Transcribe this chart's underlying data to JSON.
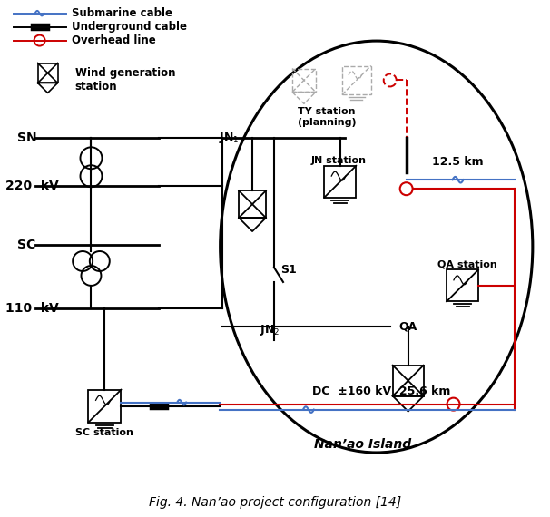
{
  "title": "Fig. 4. Nan’ao project configuration [14]",
  "island_label": "Nan’ao Island",
  "dc_label": "DC  ±160 kV  25.6 km",
  "km_label": "12.5 km",
  "blue": "#4472C4",
  "red": "#CC0000",
  "gray": "#AAAAAA",
  "background": "#ffffff"
}
